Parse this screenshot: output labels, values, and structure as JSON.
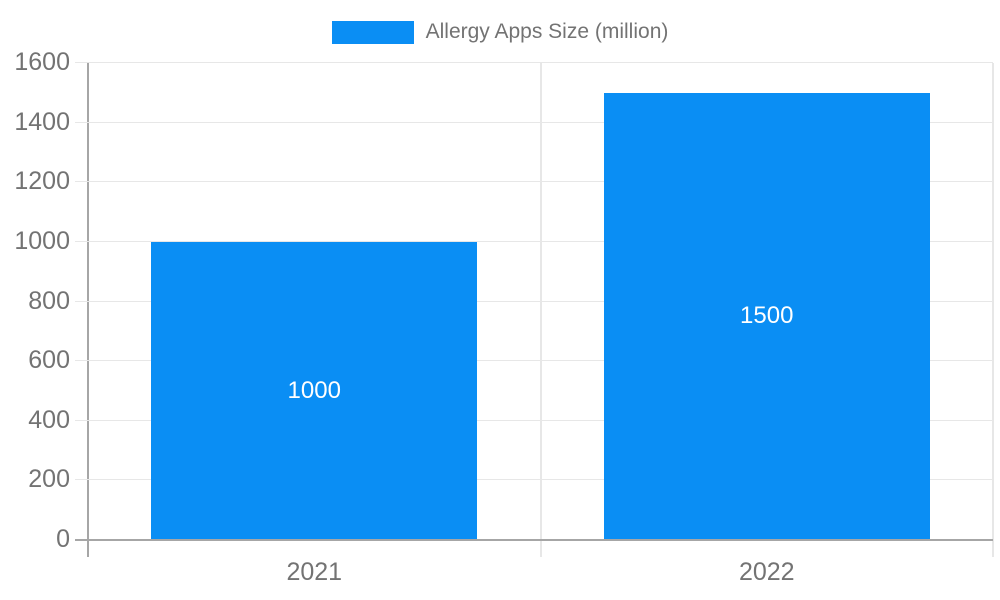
{
  "colors": {
    "background": "#ffffff",
    "bar": "#0a8ef4",
    "axis_text": "#737373",
    "grid": "#e7e7e7",
    "axis_line": "#a6a6a6",
    "value_label": "#ffffff"
  },
  "legend": {
    "label": "Allergy Apps Size (million)",
    "swatch_color": "#0a8ef4"
  },
  "chart_data": {
    "type": "bar",
    "title": "",
    "xlabel": "",
    "ylabel": "",
    "categories": [
      "2021",
      "2022"
    ],
    "series": [
      {
        "name": "Allergy Apps Size (million)",
        "values": [
          1000,
          1500
        ]
      }
    ],
    "data_labels": [
      "1000",
      "1500"
    ],
    "ylim": [
      0,
      1600
    ],
    "ytick_step": 200,
    "yticks": [
      0,
      200,
      400,
      600,
      800,
      1000,
      1200,
      1400,
      1600
    ],
    "grid": true,
    "legend_position": "top-center"
  }
}
